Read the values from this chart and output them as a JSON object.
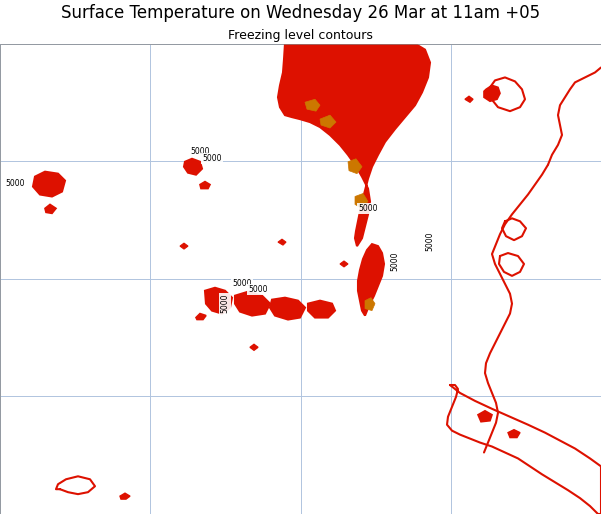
{
  "title": "Surface Temperature on Wednesday 26 Mar at 11am +05",
  "subtitle": "Freezing level contours",
  "title_fontsize": 12,
  "subtitle_fontsize": 9,
  "background_color": "#ffffff",
  "map_bg_color": "#d0dff0",
  "land_color": "#dd1100",
  "highland_color": "#cc7700",
  "contour_color": "#dd1100",
  "grid_color": "#b0c4de",
  "fig_width": 6.01,
  "fig_height": 5.14,
  "dpi": 100
}
